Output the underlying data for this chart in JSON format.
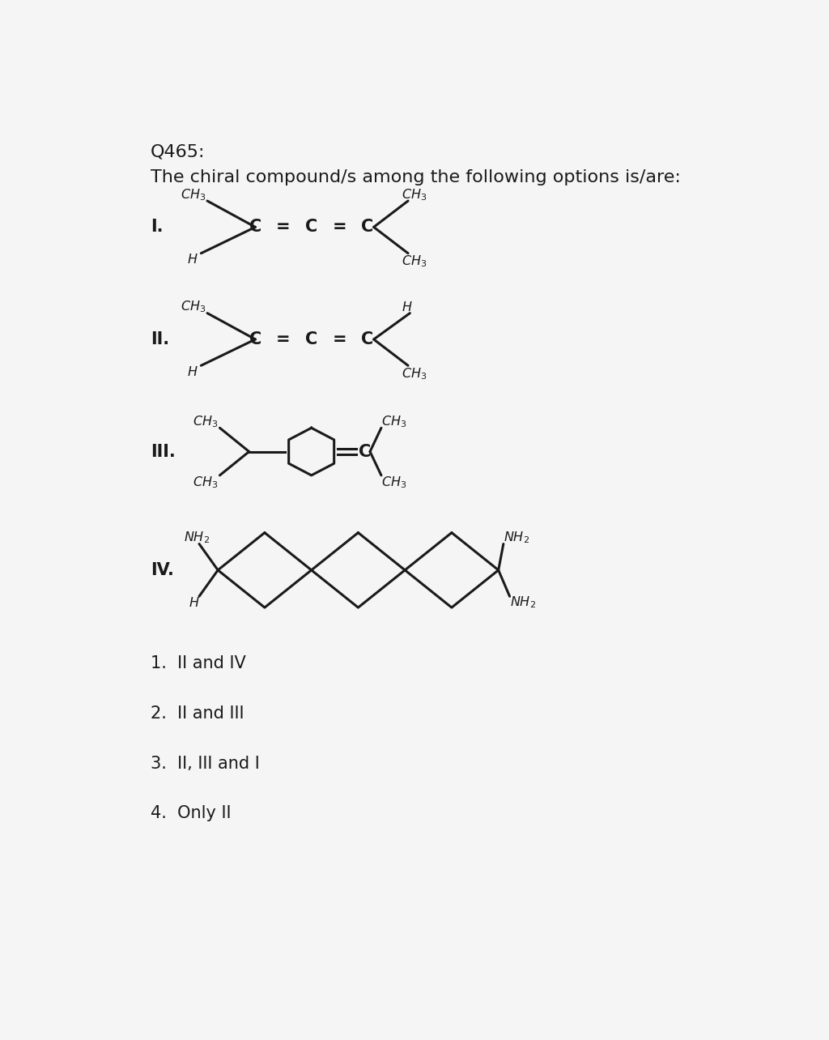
{
  "title": "Q465:",
  "question": "The chiral compound/s among the following options is/are:",
  "options": [
    "1.  II and IV",
    "2.  II and III",
    "3.  II, III and I",
    "4.  Only II"
  ],
  "bg_color": "#f5f5f5",
  "text_color": "#1a1a1a",
  "font_size_title": 16,
  "font_size_question": 16,
  "font_size_options": 15,
  "font_size_labels": 11.5,
  "font_size_roman": 15,
  "font_size_backbone": 14
}
